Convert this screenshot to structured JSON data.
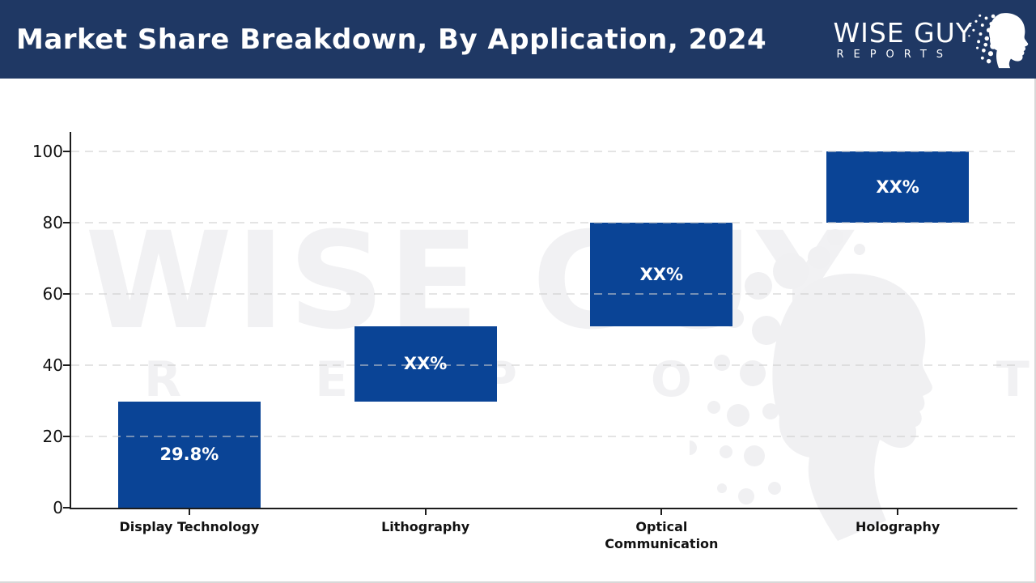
{
  "header": {
    "title": "Market Share Breakdown, By Application, 2024",
    "logo": {
      "line1": "WISE GUY",
      "line2": "REPORTS"
    }
  },
  "watermark": {
    "line1": "WISE GUY",
    "line2": "R E P O R T S"
  },
  "chart_data": {
    "type": "bar",
    "subtype": "waterfall",
    "title": "Market Share Breakdown, By Application, 2024",
    "categories": [
      "Display Technology",
      "Lithography",
      "Optical\nCommunication",
      "Holography"
    ],
    "segments": [
      {
        "start": 0,
        "end": 29.8,
        "label": "29.8%"
      },
      {
        "start": 29.8,
        "end": 51,
        "label": "XX%"
      },
      {
        "start": 51,
        "end": 80,
        "label": "XX%"
      },
      {
        "start": 80,
        "end": 100,
        "label": "XX%"
      }
    ],
    "xlabel": "",
    "ylabel": "",
    "ylim": [
      0,
      100
    ],
    "yticks": [
      0,
      20,
      40,
      60,
      80,
      100
    ],
    "grid": true,
    "legend": "none",
    "bar_color": "#0a4496",
    "bar_label_color": "#ffffff"
  },
  "colors": {
    "header_bg": "#1f3864",
    "header_text": "#ffffff",
    "watermark": "#f1f1f3",
    "grid": "#cdcdcd",
    "axis": "#1c1c1c"
  }
}
